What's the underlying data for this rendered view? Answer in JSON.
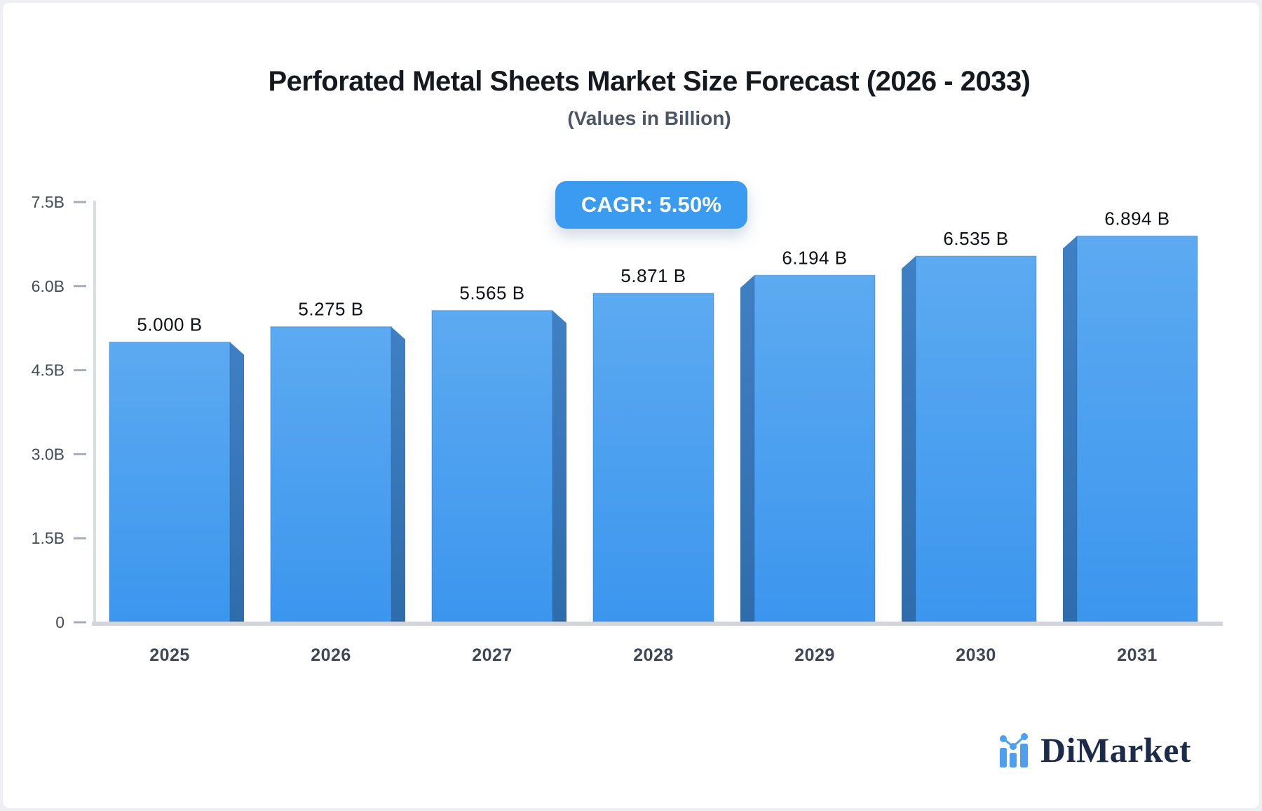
{
  "header": {
    "title": "Perforated Metal Sheets Market Size Forecast (2026 - 2033)",
    "subtitle": "(Values in Billion)"
  },
  "badge": {
    "label": "CAGR: 5.50%",
    "bg_color": "#3b9bf1",
    "text_color": "#ffffff"
  },
  "chart_data": {
    "type": "bar",
    "title": "Perforated Metal Sheets Market Size Forecast (2026 - 2033)",
    "subtitle": "(Values in Billion)",
    "categories": [
      "2025",
      "2026",
      "2027",
      "2028",
      "2029",
      "2030",
      "2031"
    ],
    "values": [
      5.0,
      5.275,
      5.565,
      5.871,
      6.194,
      6.535,
      6.894
    ],
    "value_labels": [
      "5.000 B",
      "5.275 B",
      "5.565 B",
      "5.871 B",
      "6.194 B",
      "6.535 B",
      "6.894 B"
    ],
    "xlabel": "",
    "ylabel": "",
    "ylim": [
      0,
      7.5
    ],
    "yticks": [
      {
        "value": 0,
        "label": "0"
      },
      {
        "value": 1.5,
        "label": "1.5B"
      },
      {
        "value": 3.0,
        "label": "3.0B"
      },
      {
        "value": 4.5,
        "label": "4.5B"
      },
      {
        "value": 6.0,
        "label": "6.0B"
      },
      {
        "value": 7.5,
        "label": "7.5B"
      }
    ],
    "grid": false,
    "legend": "none",
    "style": "3d-perspective-bars",
    "colors": {
      "bar_face_top": "#5caaf1",
      "bar_face_bottom": "#3c96ee",
      "bar_side_top": "#3f80c4",
      "bar_side_bottom": "#2f6cab",
      "axis_line": "#d9dce1",
      "baseline": "#d2d5da",
      "tick_mark": "#a7adb8",
      "tick_label": "#414b58",
      "category_label": "#3d4757",
      "value_label": "#0d1117"
    }
  },
  "logo": {
    "text": "DiMarket",
    "icon": "bar-chart-logo-icon",
    "text_color": "#1c2b4a",
    "accent_color": "#4da0f0"
  }
}
